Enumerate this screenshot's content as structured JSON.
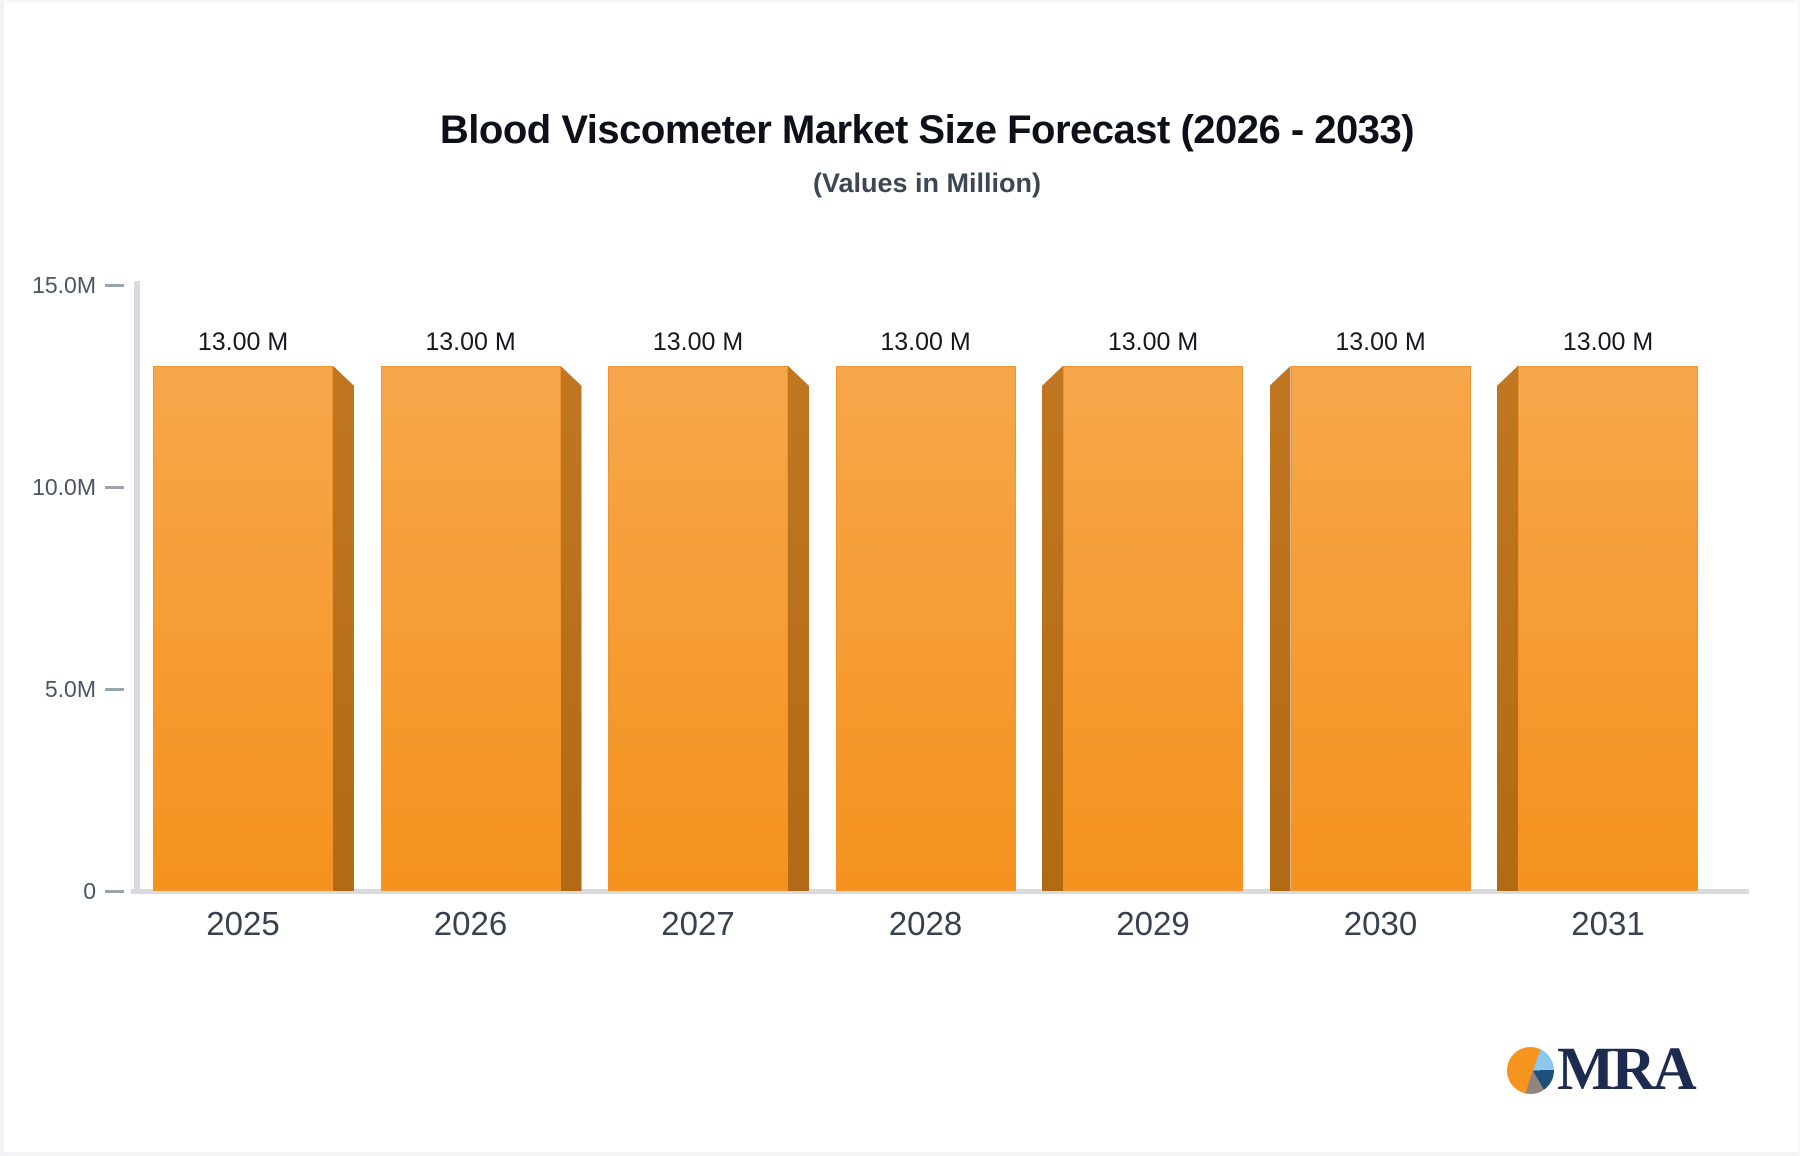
{
  "header": {
    "title": "Blood Viscometer Market Size Forecast (2026 - 2033)",
    "subtitle": "(Values in Million)"
  },
  "chart_data": {
    "type": "bar",
    "title": "Blood Viscometer Market Size Forecast (2026 - 2033)",
    "subtitle": "(Values in Million)",
    "categories": [
      "2025",
      "2026",
      "2027",
      "2028",
      "2029",
      "2030",
      "2031"
    ],
    "values": [
      13,
      13,
      13,
      13,
      13,
      13,
      13
    ],
    "value_labels": [
      "13.00 M",
      "13.00 M",
      "13.00 M",
      "13.00 M",
      "13.00 M",
      "13.00 M",
      "13.00 M"
    ],
    "xlabel": "",
    "ylabel": "",
    "ylim": [
      0,
      15
    ],
    "yticks": [
      {
        "label": "15.0M",
        "value": 15
      },
      {
        "label": "10.0M",
        "value": 10
      },
      {
        "label": "5.0M",
        "value": 5
      },
      {
        "label": "0",
        "value": 0
      }
    ],
    "grid": false,
    "legend": false,
    "bar_style": "3d-perspective",
    "colors": {
      "bar_face_top": "#f6a74b",
      "bar_face_bottom": "#f5921e",
      "bar_side_top": "#c17721",
      "bar_side_bottom": "#b26a14",
      "axis": "#d9dbe0",
      "tick": "#9ba3b0",
      "value_label": "#16181f",
      "x_label": "#39414f",
      "y_label": "#4b5563"
    }
  },
  "logo": {
    "text": "MRA",
    "colors": {
      "text": "#1d2b50",
      "pie_orange": "#f5941f",
      "pie_lightblue": "#8cc8ec",
      "pie_navy": "#1e507c",
      "pie_gray": "#93857c"
    }
  }
}
